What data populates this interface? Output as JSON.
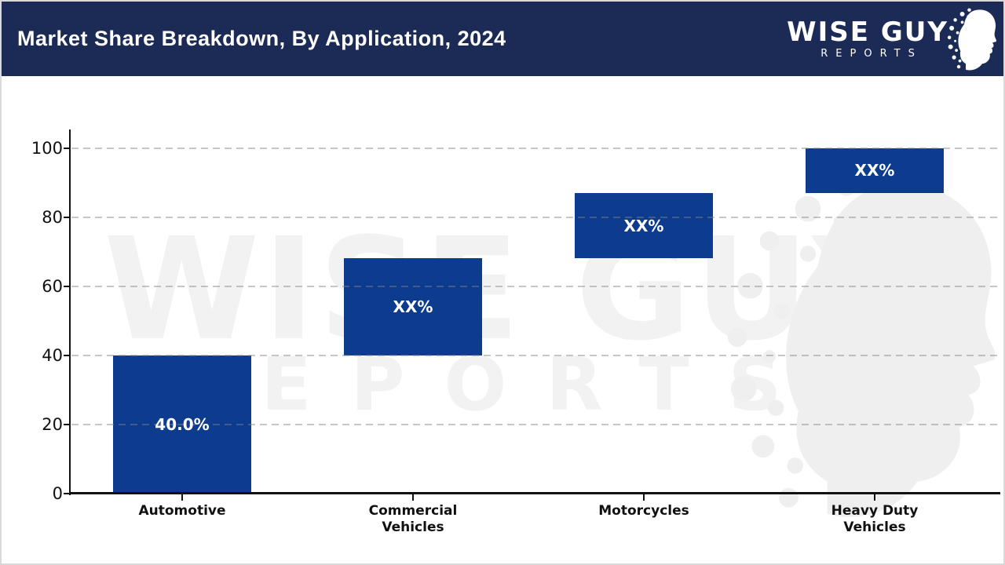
{
  "header": {
    "title": "Market Share Breakdown, By Application, 2024",
    "logo": {
      "line1": "WISE GUY",
      "line2": "REPORTS"
    }
  },
  "watermark": {
    "line1": "WISE GUY",
    "line2": "REPORTS"
  },
  "colors": {
    "header_bg": "#1c2a56",
    "bar": "#0d3b8e",
    "grid": "rgba(130,130,130,0.45)",
    "axis": "#111111",
    "watermark_text": "#f2f2f2",
    "watermark_face": "#efefef",
    "bar_label": "#ffffff",
    "page_border": "#d9d9d9"
  },
  "chart_data": {
    "type": "bar",
    "subtype": "waterfall",
    "title": "Market Share Breakdown, By Application, 2024",
    "categories": [
      "Automotive",
      "Commercial Vehicles",
      "Motorcycles",
      "Heavy Duty Vehicles"
    ],
    "segments": [
      {
        "category": "Automotive",
        "label_lines": [
          "Automotive"
        ],
        "start": 0,
        "end": 40,
        "label": "40.0%"
      },
      {
        "category": "Commercial Vehicles",
        "label_lines": [
          "Commercial",
          "Vehicles"
        ],
        "start": 40,
        "end": 68,
        "label": "XX%"
      },
      {
        "category": "Motorcycles",
        "label_lines": [
          "Motorcycles"
        ],
        "start": 68,
        "end": 87,
        "label": "XX%"
      },
      {
        "category": "Heavy Duty Vehicles",
        "label_lines": [
          "Heavy Duty",
          "Vehicles"
        ],
        "start": 87,
        "end": 100,
        "label": "XX%"
      }
    ],
    "xlabel": "",
    "ylabel": "",
    "ylim": [
      0,
      100
    ],
    "yticks": [
      0,
      20,
      40,
      60,
      80,
      100
    ],
    "grid": "dashed-horizontal-over-bars",
    "legend": "none"
  }
}
